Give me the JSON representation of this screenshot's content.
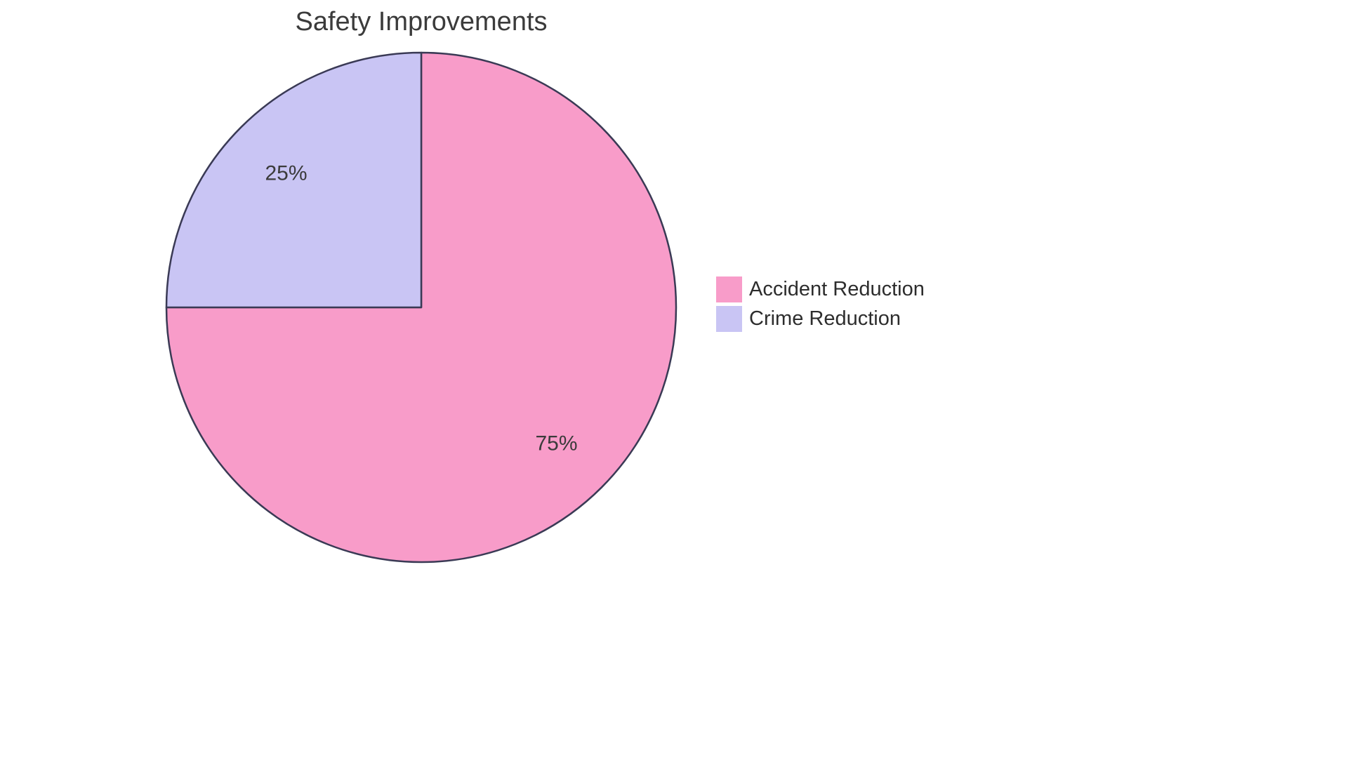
{
  "title": "Safety Improvements",
  "chart_data": {
    "type": "pie",
    "title": "Safety Improvements",
    "labels": [
      "Accident Reduction",
      "Crime Reduction"
    ],
    "values": [
      75,
      25
    ],
    "percent_labels": [
      "75%",
      "25%"
    ],
    "colors": [
      "#F89CC9",
      "#C9C5F4"
    ],
    "start_angle_deg": 0,
    "direction": "clockwise",
    "legend_position": "right"
  },
  "legend": {
    "items": [
      {
        "label": "Accident Reduction",
        "color": "#F89CC9"
      },
      {
        "label": "Crime Reduction",
        "color": "#C9C5F4"
      }
    ]
  },
  "style": {
    "slice_stroke": "#3A3A55",
    "title_color": "#3B3B3B",
    "label_color": "#3B3B3B",
    "background": "#FFFFFF"
  }
}
